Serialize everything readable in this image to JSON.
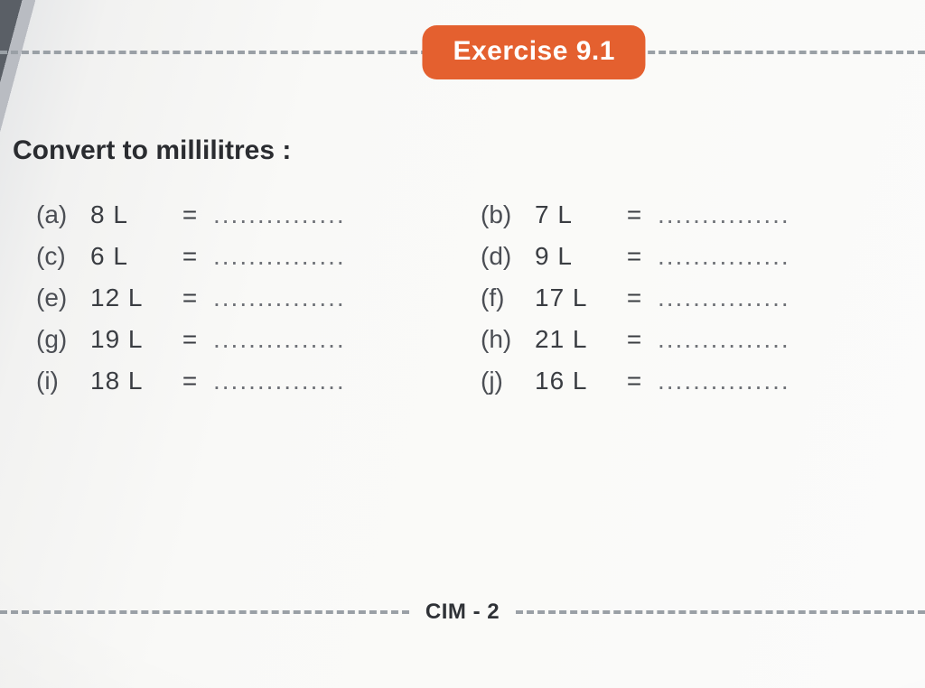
{
  "colors": {
    "badge_bg": "#e4602f",
    "badge_text": "#ffffff",
    "dash": "#9aa0a6",
    "heading": "#2a2c30",
    "body_text": "#3a3d42",
    "label_text": "#4b4e54",
    "blank_dots": "#6d7076",
    "footer_text": "#2f3237"
  },
  "badge": {
    "text": "Exercise 9.1"
  },
  "heading": "Convert to millilitres :",
  "blank_glyph": "...............",
  "items": [
    {
      "label": "(a)",
      "qty": "8 L",
      "col": 0
    },
    {
      "label": "(b)",
      "qty": "7 L",
      "col": 1
    },
    {
      "label": "(c)",
      "qty": "6 L",
      "col": 0
    },
    {
      "label": "(d)",
      "qty": "9 L",
      "col": 1
    },
    {
      "label": "(e)",
      "qty": "12 L",
      "col": 0
    },
    {
      "label": "(f)",
      "qty": "17 L",
      "col": 1
    },
    {
      "label": "(g)",
      "qty": "19 L",
      "col": 0
    },
    {
      "label": "(h)",
      "qty": "21 L",
      "col": 1
    },
    {
      "label": "(i)",
      "qty": "18 L",
      "col": 0
    },
    {
      "label": "(j)",
      "qty": "16 L",
      "col": 1
    }
  ],
  "equals": "=",
  "footer": "CIM - 2"
}
